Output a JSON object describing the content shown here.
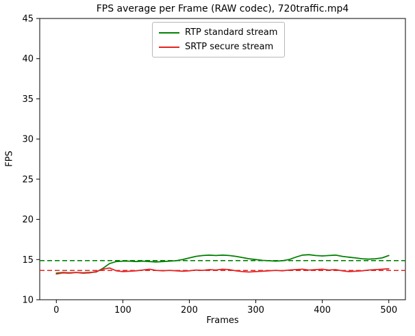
{
  "chart_data": {
    "type": "line",
    "title": "FPS average per Frame (RAW codec), 720traffic.mp4",
    "xlabel": "Frames",
    "ylabel": "FPS",
    "xlim": [
      -25,
      525
    ],
    "ylim": [
      10,
      45
    ],
    "xticks": [
      0,
      100,
      200,
      300,
      400,
      500
    ],
    "yticks": [
      10,
      15,
      20,
      25,
      30,
      35,
      40,
      45
    ],
    "grid": false,
    "legend_position": "upper center",
    "x": [
      0,
      10,
      20,
      30,
      40,
      50,
      60,
      70,
      80,
      90,
      100,
      110,
      120,
      130,
      140,
      150,
      160,
      170,
      180,
      190,
      200,
      210,
      220,
      230,
      240,
      250,
      260,
      270,
      280,
      290,
      300,
      310,
      320,
      330,
      340,
      350,
      360,
      370,
      380,
      390,
      400,
      410,
      420,
      430,
      440,
      450,
      460,
      470,
      480,
      490,
      500
    ],
    "series": [
      {
        "name": "RTP standard stream",
        "color": "#008000",
        "avg": 14.87,
        "values": [
          13.3,
          13.4,
          13.35,
          13.4,
          13.35,
          13.4,
          13.45,
          13.9,
          14.5,
          14.75,
          14.8,
          14.8,
          14.75,
          14.8,
          14.75,
          14.7,
          14.75,
          14.8,
          14.85,
          15.0,
          15.2,
          15.4,
          15.5,
          15.55,
          15.5,
          15.55,
          15.5,
          15.4,
          15.25,
          15.1,
          15.0,
          14.9,
          14.85,
          14.8,
          14.85,
          15.0,
          15.3,
          15.55,
          15.6,
          15.5,
          15.45,
          15.5,
          15.55,
          15.4,
          15.3,
          15.2,
          15.1,
          15.05,
          15.1,
          15.2,
          15.5
        ]
      },
      {
        "name": "SRTP secure stream",
        "color": "#e32222",
        "avg": 13.64,
        "values": [
          13.2,
          13.35,
          13.3,
          13.4,
          13.3,
          13.35,
          13.5,
          13.8,
          13.95,
          13.6,
          13.5,
          13.55,
          13.6,
          13.7,
          13.8,
          13.65,
          13.6,
          13.65,
          13.6,
          13.55,
          13.6,
          13.7,
          13.65,
          13.75,
          13.7,
          13.8,
          13.75,
          13.6,
          13.5,
          13.45,
          13.5,
          13.55,
          13.6,
          13.65,
          13.6,
          13.7,
          13.75,
          13.8,
          13.7,
          13.75,
          13.8,
          13.7,
          13.75,
          13.6,
          13.5,
          13.55,
          13.6,
          13.7,
          13.75,
          13.8,
          13.85
        ]
      }
    ]
  }
}
